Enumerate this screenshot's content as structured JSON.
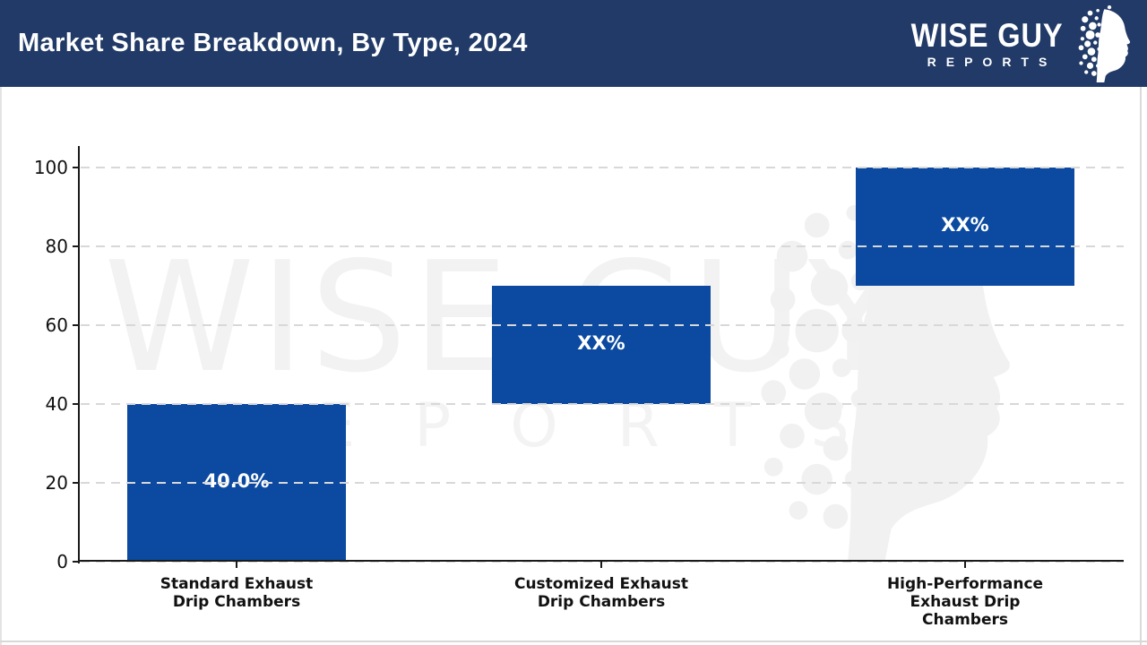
{
  "header": {
    "title": "Market Share Breakdown, By Type, 2024",
    "bg_color": "#213a67",
    "logo": {
      "line1": "WISE GUY",
      "line2": "REPORTS"
    }
  },
  "watermark": {
    "line1": "WISE GUY",
    "line2": "REPORTS"
  },
  "chart_data": {
    "type": "bar",
    "subtype": "floating_stacked_segments",
    "title": "Market Share Breakdown, By Type, 2024",
    "categories": [
      "Standard Exhaust Drip Chambers",
      "Customized Exhaust Drip Chambers",
      "High-Performance Exhaust Drip Chambers"
    ],
    "categories_display": [
      [
        "Standard Exhaust",
        "Drip Chambers"
      ],
      [
        "Customized Exhaust",
        "Drip Chambers"
      ],
      [
        "High-Performance",
        "Exhaust Drip",
        "Chambers"
      ]
    ],
    "segments": [
      {
        "category": "Standard Exhaust Drip Chambers",
        "start": 0,
        "end": 40,
        "label": "40.0%"
      },
      {
        "category": "Customized Exhaust Drip Chambers",
        "start": 40,
        "end": 70,
        "label": "XX%"
      },
      {
        "category": "High-Performance Exhaust Drip Chambers",
        "start": 70,
        "end": 100,
        "label": "XX%"
      }
    ],
    "ylim": [
      0,
      100
    ],
    "yticks": [
      0,
      20,
      40,
      60,
      80,
      100
    ],
    "grid": {
      "horizontal": true,
      "style": "dashed",
      "color": "#d8d8d8",
      "above_bars": true
    },
    "bar_color": "#0b4aa0",
    "value_label_color": "#ffffff",
    "axis_color": "#1a1a1a",
    "ylabel": "",
    "xlabel": "",
    "legend": null
  }
}
